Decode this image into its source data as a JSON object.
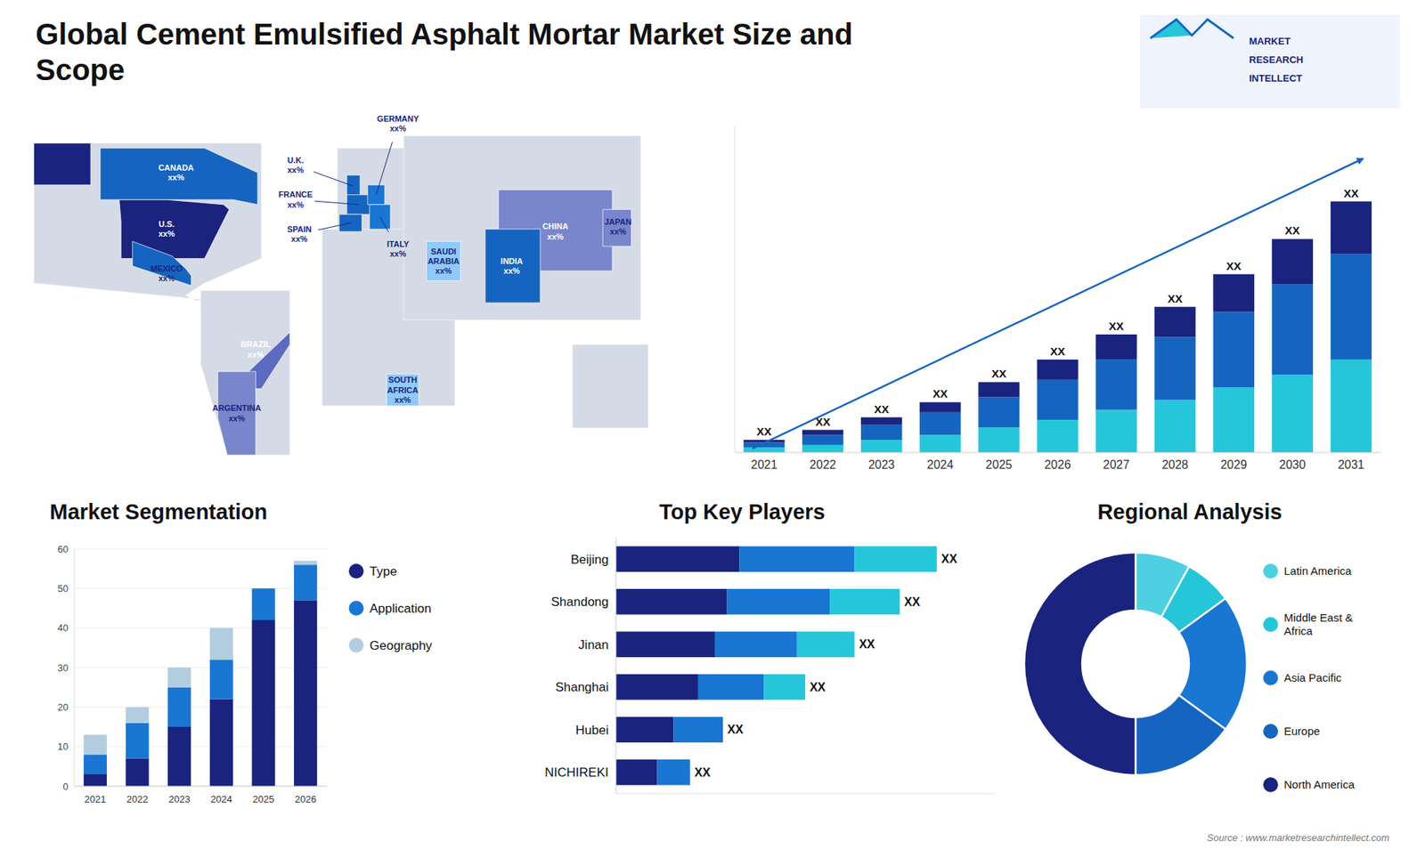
{
  "title": "Global Cement Emulsified Asphalt Mortar Market Size and\nScope",
  "annotations": [
    "MARKET",
    "RESEARCH",
    "INTELLECT",
    "Source : www.marketresearchintellect.com"
  ],
  "chart_data": [
    {
      "type": "map",
      "annotations": [
        "U.S.\nxx%",
        "CANADA\nxx%",
        "MEXICO\nxx%",
        "BRAZIL\nxx%",
        "ARGENTINA\nxx%",
        "U.K.\nxx%",
        "FRANCE\nxx%",
        "GERMANY\nxx%",
        "SPAIN\nxx%",
        "ITALY\nxx%",
        "SAUDI\nARABIA\nxx%",
        "SOUTH\nAFRICA\nxx%",
        "CHINA\nxx%",
        "INDIA\nxx%",
        "JAPAN\nxx%"
      ],
      "colors": [
        "#1a237e",
        "#1565c0",
        "#1565c0",
        "#5c6bc0",
        "#7986cb",
        "#1565c0",
        "#1565c0",
        "#1976d2",
        "#1565c0",
        "#1976d2",
        "#90caf9",
        "#90caf9",
        "#7986cb",
        "#1565c0",
        "#7986cb"
      ]
    },
    {
      "type": "bar",
      "stacked": true,
      "categories": [
        "2021",
        "2022",
        "2023",
        "2024",
        "2025",
        "2026",
        "2027",
        "2028",
        "2029",
        "2030",
        "2031"
      ],
      "series": [
        {
          "color": "#26c6da",
          "values": [
            2,
            3,
            5,
            7,
            10,
            13,
            17,
            21,
            26,
            31,
            37
          ]
        },
        {
          "color": "#1565c0",
          "values": [
            2,
            4,
            6,
            9,
            12,
            16,
            20,
            25,
            30,
            36,
            42
          ]
        },
        {
          "color": "#1a237e",
          "values": [
            1,
            2,
            3,
            4,
            6,
            8,
            10,
            12,
            15,
            18,
            21
          ]
        }
      ],
      "annotations": [
        "XX",
        "XX",
        "XX",
        "XX",
        "XX",
        "XX",
        "XX",
        "XX",
        "XX",
        "XX",
        "XX"
      ],
      "ylim": [
        0,
        130
      ],
      "tick_labels": "x",
      "grid": false
    },
    {
      "type": "bar",
      "stacked": true,
      "title": "Market Segmentation",
      "categories": [
        "2021",
        "2022",
        "2023",
        "2024",
        "2025",
        "2026"
      ],
      "series": [
        {
          "name": "Type",
          "color": "#1a237e",
          "values": [
            3,
            7,
            15,
            22,
            42,
            47
          ]
        },
        {
          "name": "Application",
          "color": "#1976d2",
          "values": [
            5,
            9,
            10,
            10,
            8,
            9
          ]
        },
        {
          "name": "Geography",
          "color": "#b3cde0",
          "values": [
            5,
            4,
            5,
            8,
            0,
            1
          ]
        }
      ],
      "ylim": [
        0,
        60
      ],
      "yticks": [
        0,
        10,
        20,
        30,
        40,
        50,
        60
      ],
      "grid": true,
      "legend": "right"
    },
    {
      "type": "bar",
      "orientation": "horizontal",
      "stacked": true,
      "title": "Top Key Players",
      "categories": [
        "Beijing",
        "Shandong",
        "Jinan",
        "Shanghai",
        "Hubei",
        "NICHIREKI"
      ],
      "series": [
        {
          "color": "#1a237e",
          "values": [
            30,
            27,
            24,
            20,
            14,
            10
          ]
        },
        {
          "color": "#1976d2",
          "values": [
            28,
            25,
            20,
            16,
            12,
            8
          ]
        },
        {
          "color": "#26c6da",
          "values": [
            20,
            17,
            14,
            10,
            0,
            0
          ]
        }
      ],
      "annotations": [
        "XX",
        "XX",
        "XX",
        "XX",
        "XX",
        "XX"
      ],
      "xlim": [
        0,
        92.04
      ],
      "tick_labels": "y",
      "grid": false
    },
    {
      "type": "pie",
      "title": "Regional Analysis",
      "categories": [
        "Latin America",
        "Middle East &\nAfrica",
        "Asia Pacific",
        "Europe",
        "North America"
      ],
      "values": [
        8,
        7,
        20,
        15,
        50
      ],
      "colors": [
        "#4dd0e1",
        "#26c6da",
        "#1976d2",
        "#1565c0",
        "#1a237e"
      ],
      "legend": "right"
    }
  ]
}
